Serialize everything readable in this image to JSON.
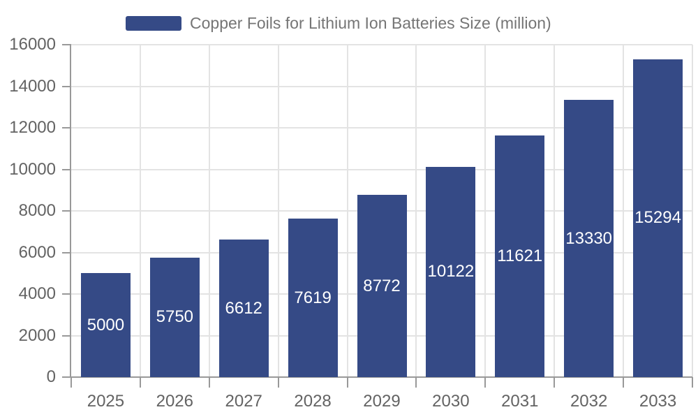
{
  "legend": {
    "label": "Copper Foils for Lithium Ion Batteries Size (million)"
  },
  "chart_data": {
    "type": "bar",
    "title": "Copper Foils for Lithium Ion Batteries Size (million)",
    "categories": [
      "2025",
      "2026",
      "2027",
      "2028",
      "2029",
      "2030",
      "2031",
      "2032",
      "2033"
    ],
    "series": [
      {
        "name": "Copper Foils for Lithium Ion Batteries Size (million)",
        "values": [
          5000,
          5750,
          6612,
          7619,
          8772,
          10122,
          11621,
          13330,
          15294
        ]
      }
    ],
    "xlabel": "",
    "ylabel": "",
    "ylim": [
      0,
      16000
    ],
    "ytick_step": 2000,
    "grid": true,
    "legend_position": "top",
    "colors": {
      "bar": "#354a86",
      "value_label": "#ffffff",
      "axis_label": "#636363",
      "legend_text": "#757575",
      "grid_line": "#e3e3e3",
      "axis_line": "#999999"
    }
  }
}
